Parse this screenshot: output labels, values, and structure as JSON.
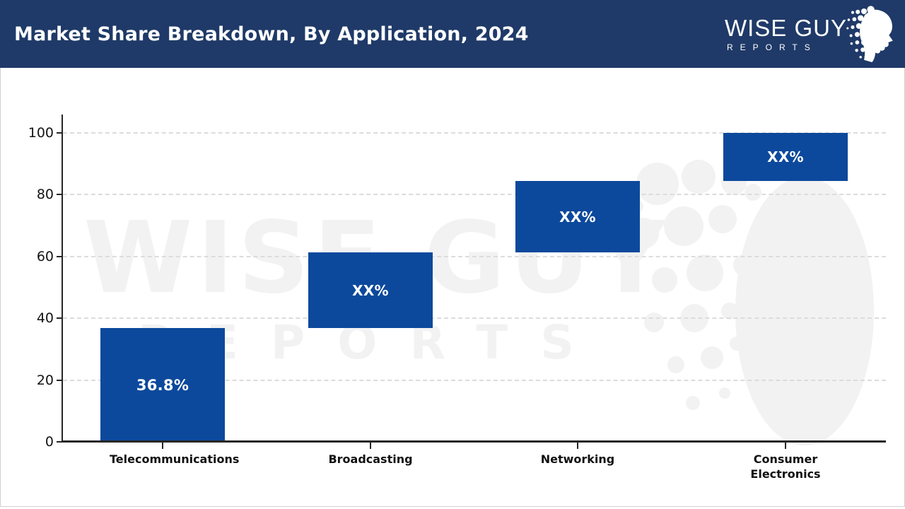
{
  "header": {
    "title": "Market Share Breakdown, By Application, 2024",
    "logo": {
      "name": "WISE GUY",
      "tagline": "REPORTS"
    }
  },
  "watermark": {
    "line1": "WISE GUY",
    "line2": "REPORTS"
  },
  "colors": {
    "header_bg": "#1f3a68",
    "bar": "#0c499c",
    "bar_label_text": "#ffffff",
    "axis": "#262626",
    "gridline": "#dcdcdc",
    "tick_label": "#141414",
    "watermark": "#f2f2f2",
    "frame_border": "#d0d0d0"
  },
  "chart_data": {
    "type": "bar",
    "subtype": "waterfall-floating-segments",
    "title": "Market Share Breakdown, By Application, 2024",
    "categories": [
      "Telecommunications",
      "Broadcasting",
      "Networking",
      "Consumer Electronics"
    ],
    "series": [
      {
        "name": "Market share (%)",
        "segments": [
          {
            "category": "Telecommunications",
            "start": 0,
            "end": 36.8,
            "label": "36.8%"
          },
          {
            "category": "Broadcasting",
            "start": 36.8,
            "end": 61.3,
            "label": "XX%"
          },
          {
            "category": "Networking",
            "start": 61.3,
            "end": 84.4,
            "label": "XX%"
          },
          {
            "category": "Consumer Electronics",
            "start": 84.4,
            "end": 100,
            "label": "XX%"
          }
        ]
      }
    ],
    "ylim": [
      0,
      100
    ],
    "yticks": [
      0,
      20,
      40,
      60,
      80,
      100
    ],
    "xlabel": "",
    "ylabel": "",
    "grid": "horizontal-dashed",
    "legend": "none",
    "bar_color": "#0c499c"
  }
}
